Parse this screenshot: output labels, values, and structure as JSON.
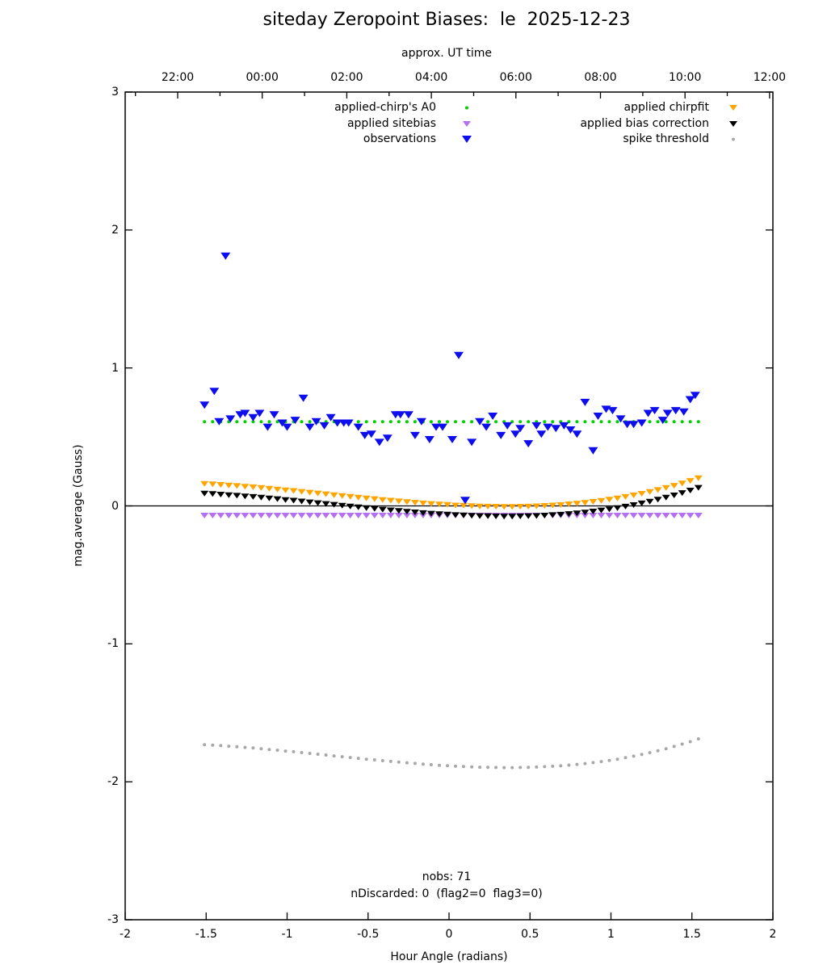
{
  "title": "siteday Zeropoint Biases:  le  2025-12-23",
  "top_axis": {
    "label": "approx. UT time",
    "ticks": [
      "22:00",
      "00:00",
      "02:00",
      "04:00",
      "06:00",
      "08:00",
      "10:00",
      "12:00"
    ]
  },
  "x_axis": {
    "label": "Hour Angle (radians)",
    "ticks": [
      "-2",
      "-1.5",
      "-1",
      "-0.5",
      "0",
      "0.5",
      "1",
      "1.5",
      "2"
    ]
  },
  "y_axis": {
    "label": "mag.average (Gauss)",
    "ticks": [
      "3",
      "2",
      "1",
      "0",
      "-1",
      "-2",
      "-3"
    ]
  },
  "annotations": {
    "nobs": "nobs: 71",
    "ndiscarded": "nDiscarded: 0  (flag2=0  flag3=0)"
  },
  "chart_data": {
    "type": "scatter",
    "title": "siteday Zeropoint Biases:  le  2025-12-23",
    "xlabel": "Hour Angle (radians)",
    "x2label": "approx. UT time",
    "ylabel": "mag.average (Gauss)",
    "xlim": [
      -2,
      2
    ],
    "ylim": [
      -3,
      3
    ],
    "x2lim_hours": [
      "20:41",
      "12:00"
    ],
    "grid": false,
    "nobs": 71,
    "nDiscarded": 0,
    "flag2": 0,
    "flag3": 0,
    "fit_x": [
      -1.51,
      -1.46,
      -1.41,
      -1.36,
      -1.31,
      -1.26,
      -1.21,
      -1.16,
      -1.11,
      -1.06,
      -1.01,
      -0.96,
      -0.91,
      -0.86,
      -0.81,
      -0.76,
      -0.71,
      -0.66,
      -0.61,
      -0.56,
      -0.51,
      -0.46,
      -0.41,
      -0.36,
      -0.31,
      -0.26,
      -0.21,
      -0.16,
      -0.11,
      -0.06,
      -0.01,
      0.04,
      0.09,
      0.14,
      0.19,
      0.24,
      0.29,
      0.34,
      0.39,
      0.44,
      0.49,
      0.54,
      0.59,
      0.64,
      0.69,
      0.74,
      0.79,
      0.84,
      0.89,
      0.94,
      0.99,
      1.04,
      1.09,
      1.14,
      1.19,
      1.24,
      1.29,
      1.34,
      1.39,
      1.44,
      1.49,
      1.54
    ],
    "series": [
      {
        "name": "applied-chirp's A0",
        "marker": "dot",
        "color": "#00d000",
        "size": 2,
        "y_const": 0.61
      },
      {
        "name": "spike threshold",
        "marker": "dot",
        "color": "#a8a8a8",
        "size": 2,
        "y": [
          -1.731,
          -1.734,
          -1.738,
          -1.742,
          -1.746,
          -1.751,
          -1.755,
          -1.76,
          -1.766,
          -1.771,
          -1.777,
          -1.782,
          -1.788,
          -1.794,
          -1.8,
          -1.806,
          -1.812,
          -1.818,
          -1.824,
          -1.83,
          -1.836,
          -1.841,
          -1.847,
          -1.852,
          -1.857,
          -1.862,
          -1.867,
          -1.872,
          -1.876,
          -1.88,
          -1.883,
          -1.887,
          -1.889,
          -1.892,
          -1.894,
          -1.895,
          -1.896,
          -1.897,
          -1.897,
          -1.896,
          -1.895,
          -1.893,
          -1.89,
          -1.887,
          -1.884,
          -1.879,
          -1.874,
          -1.868,
          -1.861,
          -1.853,
          -1.845,
          -1.836,
          -1.825,
          -1.814,
          -1.802,
          -1.789,
          -1.775,
          -1.76,
          -1.744,
          -1.727,
          -1.709,
          -1.689
        ]
      },
      {
        "name": "applied sitebias",
        "marker": "triangle-down",
        "color": "#b370f0",
        "size": [
          10,
          7
        ],
        "y_const": -0.07
      },
      {
        "name": "applied chirpfit",
        "marker": "triangle-down",
        "color": "#ffa500",
        "size": [
          10,
          7
        ],
        "y": [
          0.159,
          0.156,
          0.152,
          0.148,
          0.144,
          0.139,
          0.135,
          0.13,
          0.124,
          0.119,
          0.113,
          0.108,
          0.102,
          0.096,
          0.09,
          0.084,
          0.078,
          0.072,
          0.066,
          0.06,
          0.054,
          0.049,
          0.043,
          0.038,
          0.033,
          0.028,
          0.023,
          0.018,
          0.014,
          0.01,
          0.007,
          0.003,
          0.001,
          -0.002,
          -0.004,
          -0.005,
          -0.006,
          -0.007,
          -0.007,
          -0.006,
          -0.005,
          -0.003,
          0.0,
          0.003,
          0.006,
          0.011,
          0.016,
          0.022,
          0.029,
          0.037,
          0.045,
          0.054,
          0.065,
          0.076,
          0.088,
          0.101,
          0.115,
          0.13,
          0.146,
          0.163,
          0.181,
          0.201
        ]
      },
      {
        "name": "applied bias correction",
        "marker": "triangle-down",
        "color": "#000000",
        "size": [
          10,
          7
        ],
        "y": [
          0.089,
          0.086,
          0.082,
          0.078,
          0.074,
          0.069,
          0.065,
          0.06,
          0.054,
          0.049,
          0.043,
          0.038,
          0.032,
          0.026,
          0.02,
          0.014,
          0.008,
          0.002,
          -0.004,
          -0.01,
          -0.016,
          -0.021,
          -0.027,
          -0.032,
          -0.037,
          -0.042,
          -0.047,
          -0.052,
          -0.056,
          -0.06,
          -0.063,
          -0.067,
          -0.069,
          -0.072,
          -0.074,
          -0.075,
          -0.076,
          -0.077,
          -0.077,
          -0.076,
          -0.075,
          -0.073,
          -0.07,
          -0.067,
          -0.064,
          -0.059,
          -0.054,
          -0.048,
          -0.041,
          -0.033,
          -0.025,
          -0.016,
          -0.005,
          0.006,
          0.018,
          0.031,
          0.045,
          0.06,
          0.076,
          0.093,
          0.111,
          0.131
        ]
      },
      {
        "name": "observations",
        "marker": "triangle-down",
        "color": "#0d0dee",
        "size": [
          12,
          9
        ],
        "points": [
          [
            -1.51,
            0.73
          ],
          [
            -1.45,
            0.83
          ],
          [
            -1.42,
            0.61
          ],
          [
            -1.38,
            1.81
          ],
          [
            -1.35,
            0.63
          ],
          [
            -1.29,
            0.66
          ],
          [
            -1.26,
            0.67
          ],
          [
            -1.21,
            0.64
          ],
          [
            -1.17,
            0.67
          ],
          [
            -1.12,
            0.57
          ],
          [
            -1.08,
            0.66
          ],
          [
            -1.03,
            0.6
          ],
          [
            -1.0,
            0.57
          ],
          [
            -0.95,
            0.62
          ],
          [
            -0.9,
            0.78
          ],
          [
            -0.86,
            0.57
          ],
          [
            -0.82,
            0.61
          ],
          [
            -0.77,
            0.58
          ],
          [
            -0.73,
            0.64
          ],
          [
            -0.69,
            0.6
          ],
          [
            -0.65,
            0.6
          ],
          [
            -0.62,
            0.6
          ],
          [
            -0.56,
            0.57
          ],
          [
            -0.52,
            0.51
          ],
          [
            -0.48,
            0.52
          ],
          [
            -0.43,
            0.46
          ],
          [
            -0.38,
            0.49
          ],
          [
            -0.33,
            0.66
          ],
          [
            -0.3,
            0.66
          ],
          [
            -0.25,
            0.66
          ],
          [
            -0.21,
            0.51
          ],
          [
            -0.17,
            0.61
          ],
          [
            -0.12,
            0.48
          ],
          [
            -0.08,
            0.57
          ],
          [
            -0.04,
            0.57
          ],
          [
            0.02,
            0.48
          ],
          [
            0.06,
            1.09
          ],
          [
            0.1,
            0.04
          ],
          [
            0.14,
            0.46
          ],
          [
            0.19,
            0.61
          ],
          [
            0.23,
            0.57
          ],
          [
            0.27,
            0.65
          ],
          [
            0.32,
            0.51
          ],
          [
            0.36,
            0.58
          ],
          [
            0.41,
            0.52
          ],
          [
            0.44,
            0.56
          ],
          [
            0.49,
            0.45
          ],
          [
            0.54,
            0.58
          ],
          [
            0.57,
            0.52
          ],
          [
            0.61,
            0.57
          ],
          [
            0.66,
            0.56
          ],
          [
            0.71,
            0.58
          ],
          [
            0.75,
            0.55
          ],
          [
            0.79,
            0.52
          ],
          [
            0.84,
            0.75
          ],
          [
            0.89,
            0.4
          ],
          [
            0.92,
            0.65
          ],
          [
            0.97,
            0.7
          ],
          [
            1.01,
            0.69
          ],
          [
            1.06,
            0.63
          ],
          [
            1.1,
            0.59
          ],
          [
            1.14,
            0.59
          ],
          [
            1.19,
            0.6
          ],
          [
            1.23,
            0.67
          ],
          [
            1.27,
            0.69
          ],
          [
            1.32,
            0.62
          ],
          [
            1.35,
            0.67
          ],
          [
            1.4,
            0.69
          ],
          [
            1.45,
            0.68
          ],
          [
            1.49,
            0.77
          ],
          [
            1.52,
            0.8
          ]
        ]
      }
    ],
    "legend": [
      {
        "label": "applied-chirp's A0",
        "series": 0,
        "col": 0,
        "row": 0
      },
      {
        "label": "applied sitebias",
        "series": 2,
        "col": 0,
        "row": 1
      },
      {
        "label": "observations",
        "series": 5,
        "col": 0,
        "row": 2
      },
      {
        "label": "applied chirpfit",
        "series": 3,
        "col": 1,
        "row": 0
      },
      {
        "label": "applied bias correction",
        "series": 4,
        "col": 1,
        "row": 1
      },
      {
        "label": "spike threshold",
        "series": 1,
        "col": 1,
        "row": 2
      }
    ],
    "legend_position": "top-inside"
  }
}
